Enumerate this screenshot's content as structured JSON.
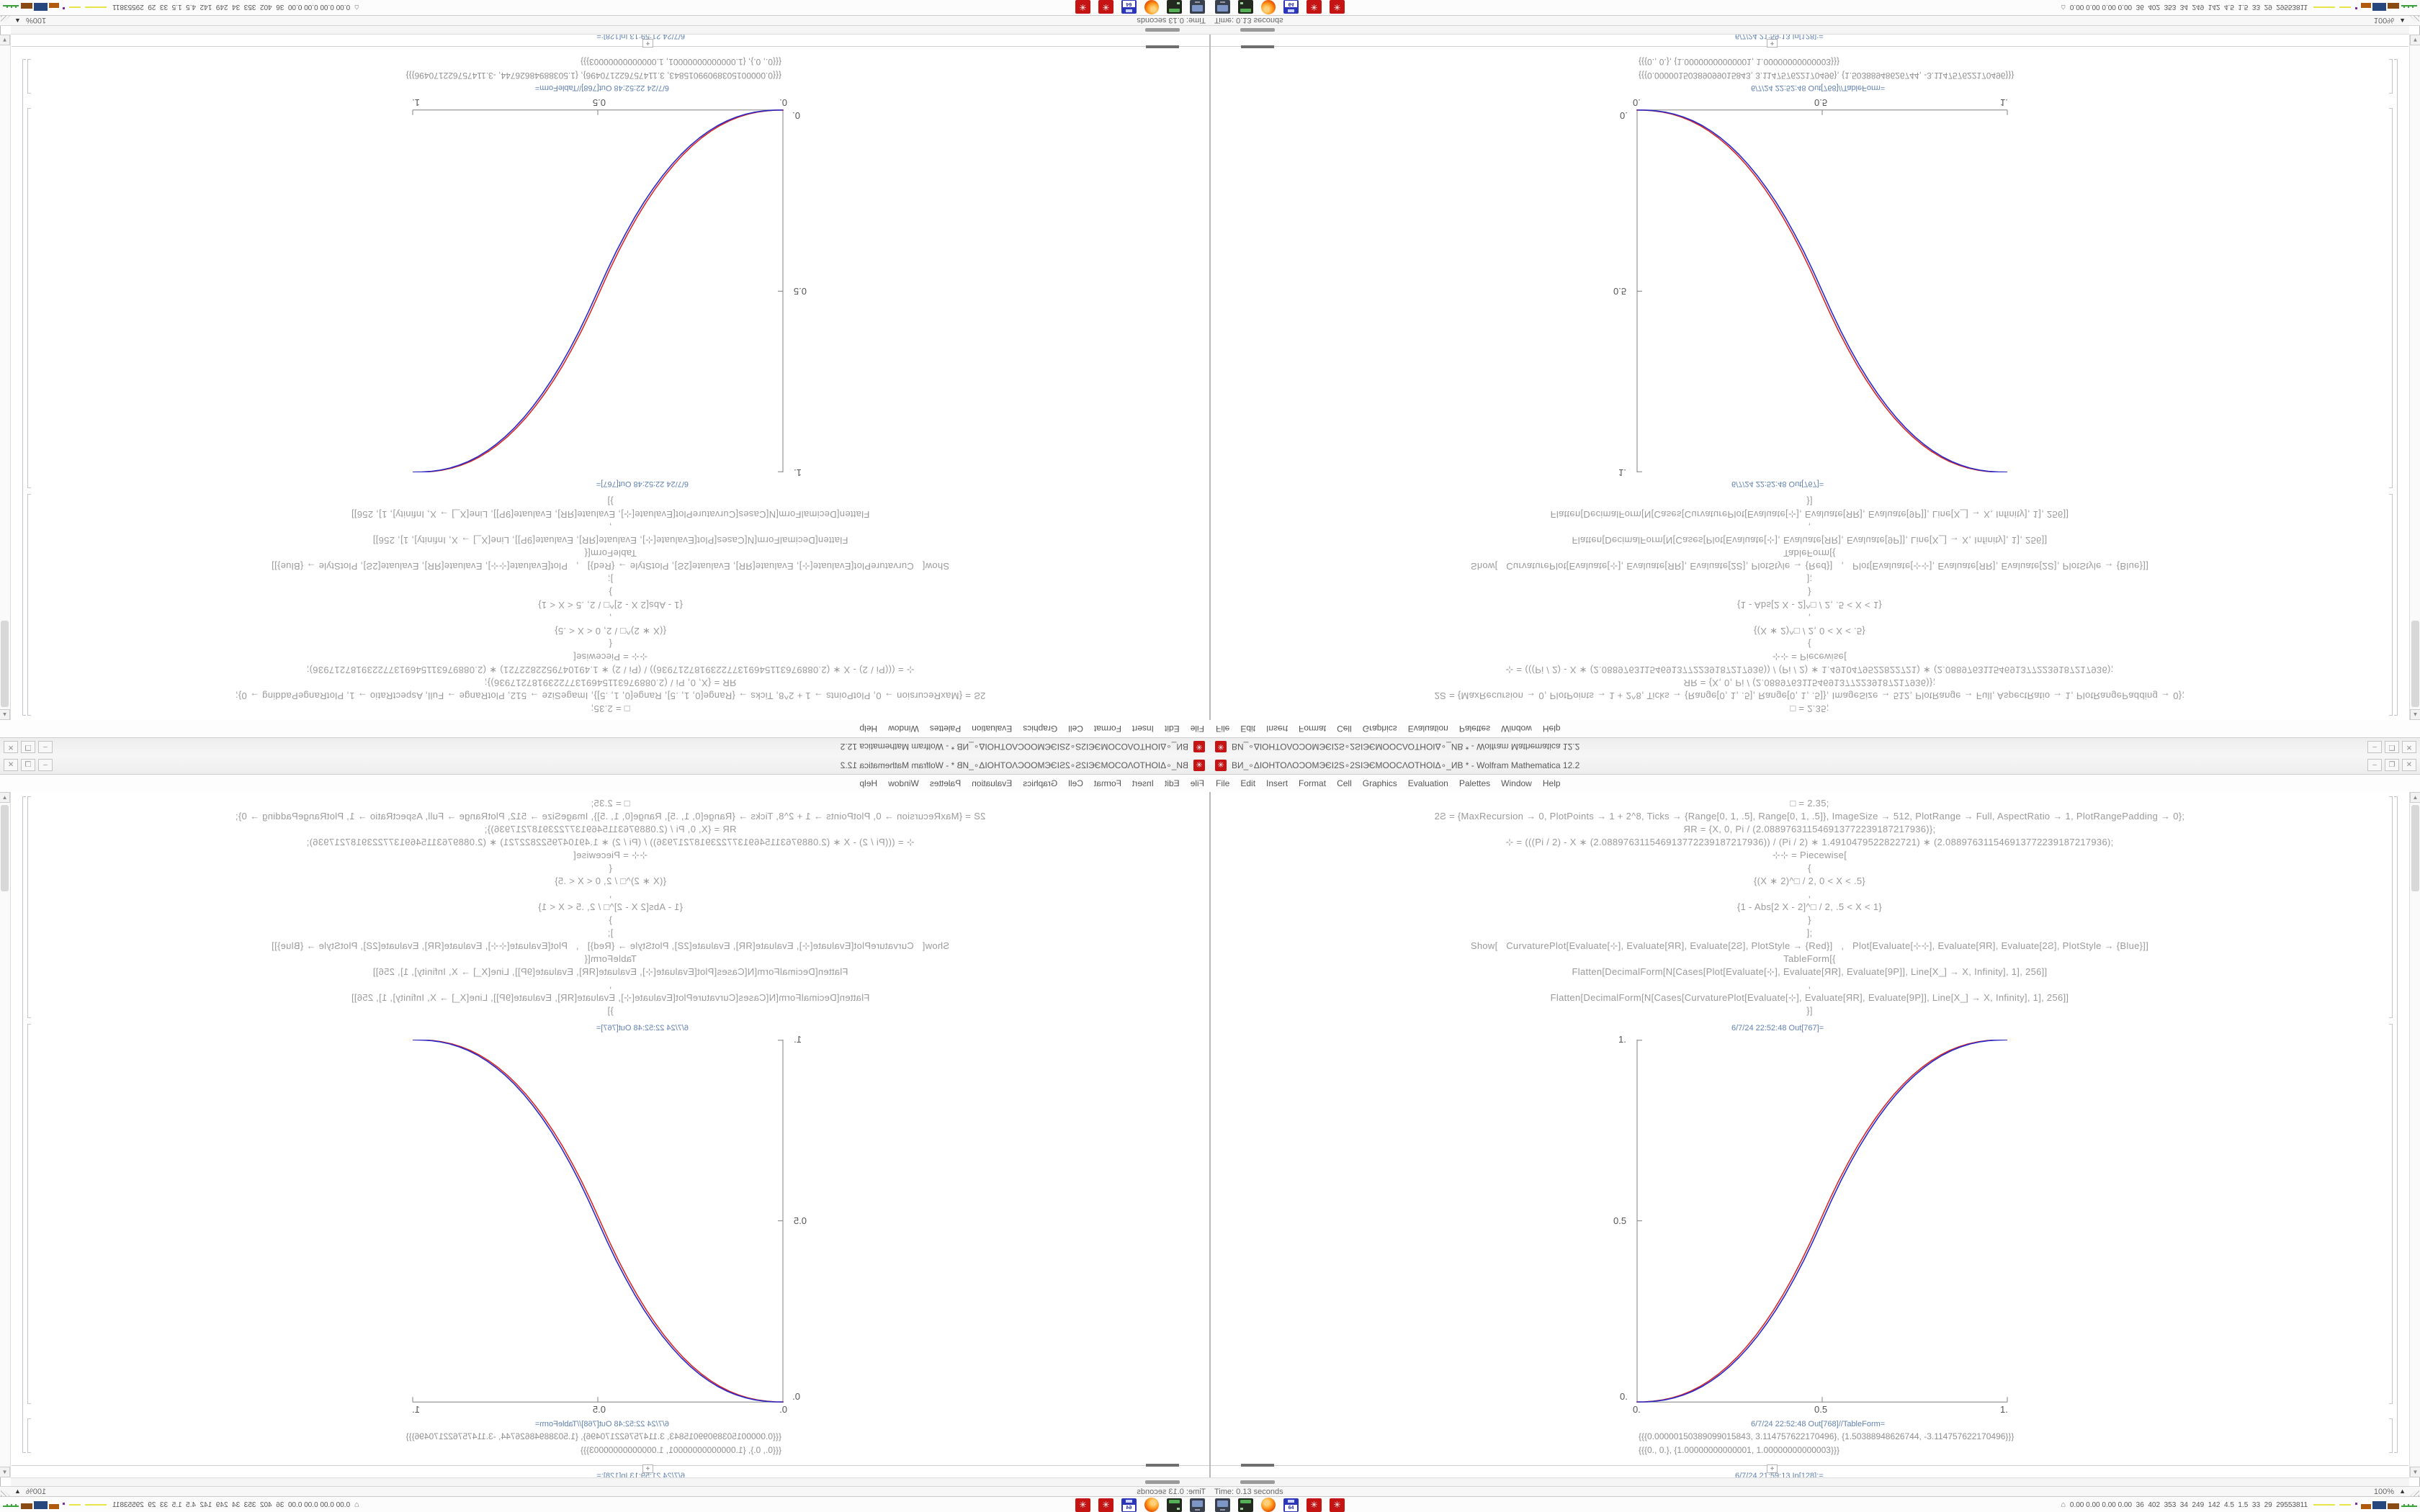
{
  "window": {
    "icon_glyph": "✳",
    "title": "ВИ_∘ΔΙΟΗΤΟΛΟϽΟΜЭЄΙ2Ѕ∘2ЅΙЭЄΜΟΟϹΛΟΤΗΟΙΔ∘_ИВ * - Wolfram Mathematica 12.2",
    "controls": {
      "minimize": "–",
      "maximize": "❐",
      "close": "✕"
    },
    "menu": [
      "File",
      "Edit",
      "Insert",
      "Format",
      "Cell",
      "Graphics",
      "Evaluation",
      "Palettes",
      "Window",
      "Help"
    ]
  },
  "notebook": {
    "code_lines": [
      "□ = 2.35;",
      "2Ƨ = {MaxRecursion → 0, PlotPoints → 1 + 2^8, Ticks → {Range[0, 1, .5], Range[0, 1, .5]}, ImageSize → 512, PlotRange → Full, AspectRatio → 1, PlotRangePadding → 0};",
      "ЯR = {X, 0, Pi / (2.088976311546913772239187217936)};",
      "⊹ = (((Pi / 2) - X ∗ (2.088976311546913772239187217936)) / (Pi / 2) ∗ 1.4910479522822721) ∗ (2.088976311546913772239187217936);",
      "⊹⊹ = Piecewise[",
      "{",
      "{(X ∗ 2)^□ / 2, 0 < X < .5}",
      ",",
      "{1 - Abs[2 X - 2]^□ / 2, .5 < X < 1}",
      "}",
      "];",
      "Show[   CurvaturePlot[Evaluate[⊹], Evaluate[ЯR], Evaluate[2Ƨ], PlotStyle → {Red}]   ,   Plot[Evaluate[⊹⊹], Evaluate[ЯR], Evaluate[2Ƨ], PlotStyle → {Blue}]]",
      "TableForm[{",
      "Flatten[DecimalForm[N[Cases[Plot[Evaluate[⊹], Evaluate[ЯR], Evaluate[9P]], Line[X_] → X, Infinity], 1], 256]]",
      ",",
      "Flatten[DecimalForm[N[Cases[CurvaturePlot[Evaluate[⊹], Evaluate[ЯR], Evaluate[9P]], Line[X_] → X, Infinity], 1], 256]]",
      "}]"
    ],
    "out_label_plot": "6/7/24 22:52:48 Out[767]=",
    "out_label_table": "6/7/24 22:52:48 Out[768]//TableForm=",
    "result_line_1": "{{{0.00000150389099015843, 3.114757622170496}, {1.50388948626744, -3.114757622170496}}}",
    "result_line_2": "{{{0., 0.}, {1.00000000000001, 1.00000000000003}}}",
    "plus_indicator": "+",
    "next_in_label": "6/7/24 21:59:13 In[128]:="
  },
  "chart_data": {
    "type": "line",
    "title": "6/7/24 22:52:48 Out[767]=",
    "xlabel": "",
    "ylabel": "",
    "xlim": [
      0,
      1
    ],
    "ylim": [
      0,
      1
    ],
    "xticks": [
      "0.",
      "0.5",
      "1."
    ],
    "yticks": [
      "0.",
      "0.5",
      "1."
    ],
    "grid": false,
    "legend": "none",
    "x": [
      0,
      0.025,
      0.05,
      0.075,
      0.1,
      0.125,
      0.15,
      0.175,
      0.2,
      0.225,
      0.25,
      0.275,
      0.3,
      0.325,
      0.35,
      0.375,
      0.4,
      0.425,
      0.45,
      0.475,
      0.5,
      0.525,
      0.55,
      0.575,
      0.6,
      0.625,
      0.65,
      0.675,
      0.7,
      0.725,
      0.75,
      0.775,
      0.8,
      0.825,
      0.85,
      0.875,
      0.9,
      0.925,
      0.95,
      0.975,
      1
    ],
    "series": [
      {
        "name": "CurvaturePlot (Red)",
        "color": "#d42a2a",
        "x_offset": -0.006,
        "values": [
          0,
          0.0004,
          0.0022,
          0.0058,
          0.0114,
          0.0192,
          0.0295,
          0.0424,
          0.058,
          0.0766,
          0.0981,
          0.1227,
          0.1505,
          0.1817,
          0.2163,
          0.2543,
          0.2959,
          0.3413,
          0.3903,
          0.4433,
          0.5,
          0.5567,
          0.6097,
          0.6587,
          0.7041,
          0.7457,
          0.7837,
          0.8183,
          0.8495,
          0.8773,
          0.9019,
          0.9234,
          0.942,
          0.9576,
          0.9705,
          0.9808,
          0.9886,
          0.9942,
          0.9978,
          0.9996,
          1
        ]
      },
      {
        "name": "Plot (Blue)",
        "color": "#2a2ac8",
        "x_offset": 0,
        "values": [
          0,
          0.0004,
          0.0022,
          0.0058,
          0.0114,
          0.0192,
          0.0295,
          0.0424,
          0.058,
          0.0766,
          0.0981,
          0.1227,
          0.1505,
          0.1817,
          0.2163,
          0.2543,
          0.2959,
          0.3413,
          0.3903,
          0.4433,
          0.5,
          0.5567,
          0.6097,
          0.6587,
          0.7041,
          0.7457,
          0.7837,
          0.8183,
          0.8495,
          0.8773,
          0.9019,
          0.9234,
          0.942,
          0.9576,
          0.9705,
          0.9808,
          0.9886,
          0.9942,
          0.9978,
          0.9996,
          1
        ]
      }
    ]
  },
  "status_bar": {
    "time_text": "Time: 0.13 seconds",
    "zoom_level": "100%",
    "zoom_arrow": "▲"
  },
  "scrollbars": {
    "up_arrow": "▲",
    "down_arrow": "▼"
  },
  "taskbar": {
    "icons": [
      "screenshot-tool",
      "disk-utility",
      "firefox",
      "floppy-64",
      "mathematica-kernel",
      "mathematica-kernel"
    ],
    "floppy_label": "64",
    "gear_glyph": "✳",
    "tray_home_glyph": "⌂",
    "tray_text": "0.00 0.00 0.00 0.00  36  402  353  34  249  142  4.5  1.5  33  29  29553811"
  },
  "tiles": {
    "layout": "2x2 same screenshot",
    "transforms": [
      "rotate-180",
      "flip-vertical",
      "flip-horizontal",
      "identity"
    ]
  }
}
